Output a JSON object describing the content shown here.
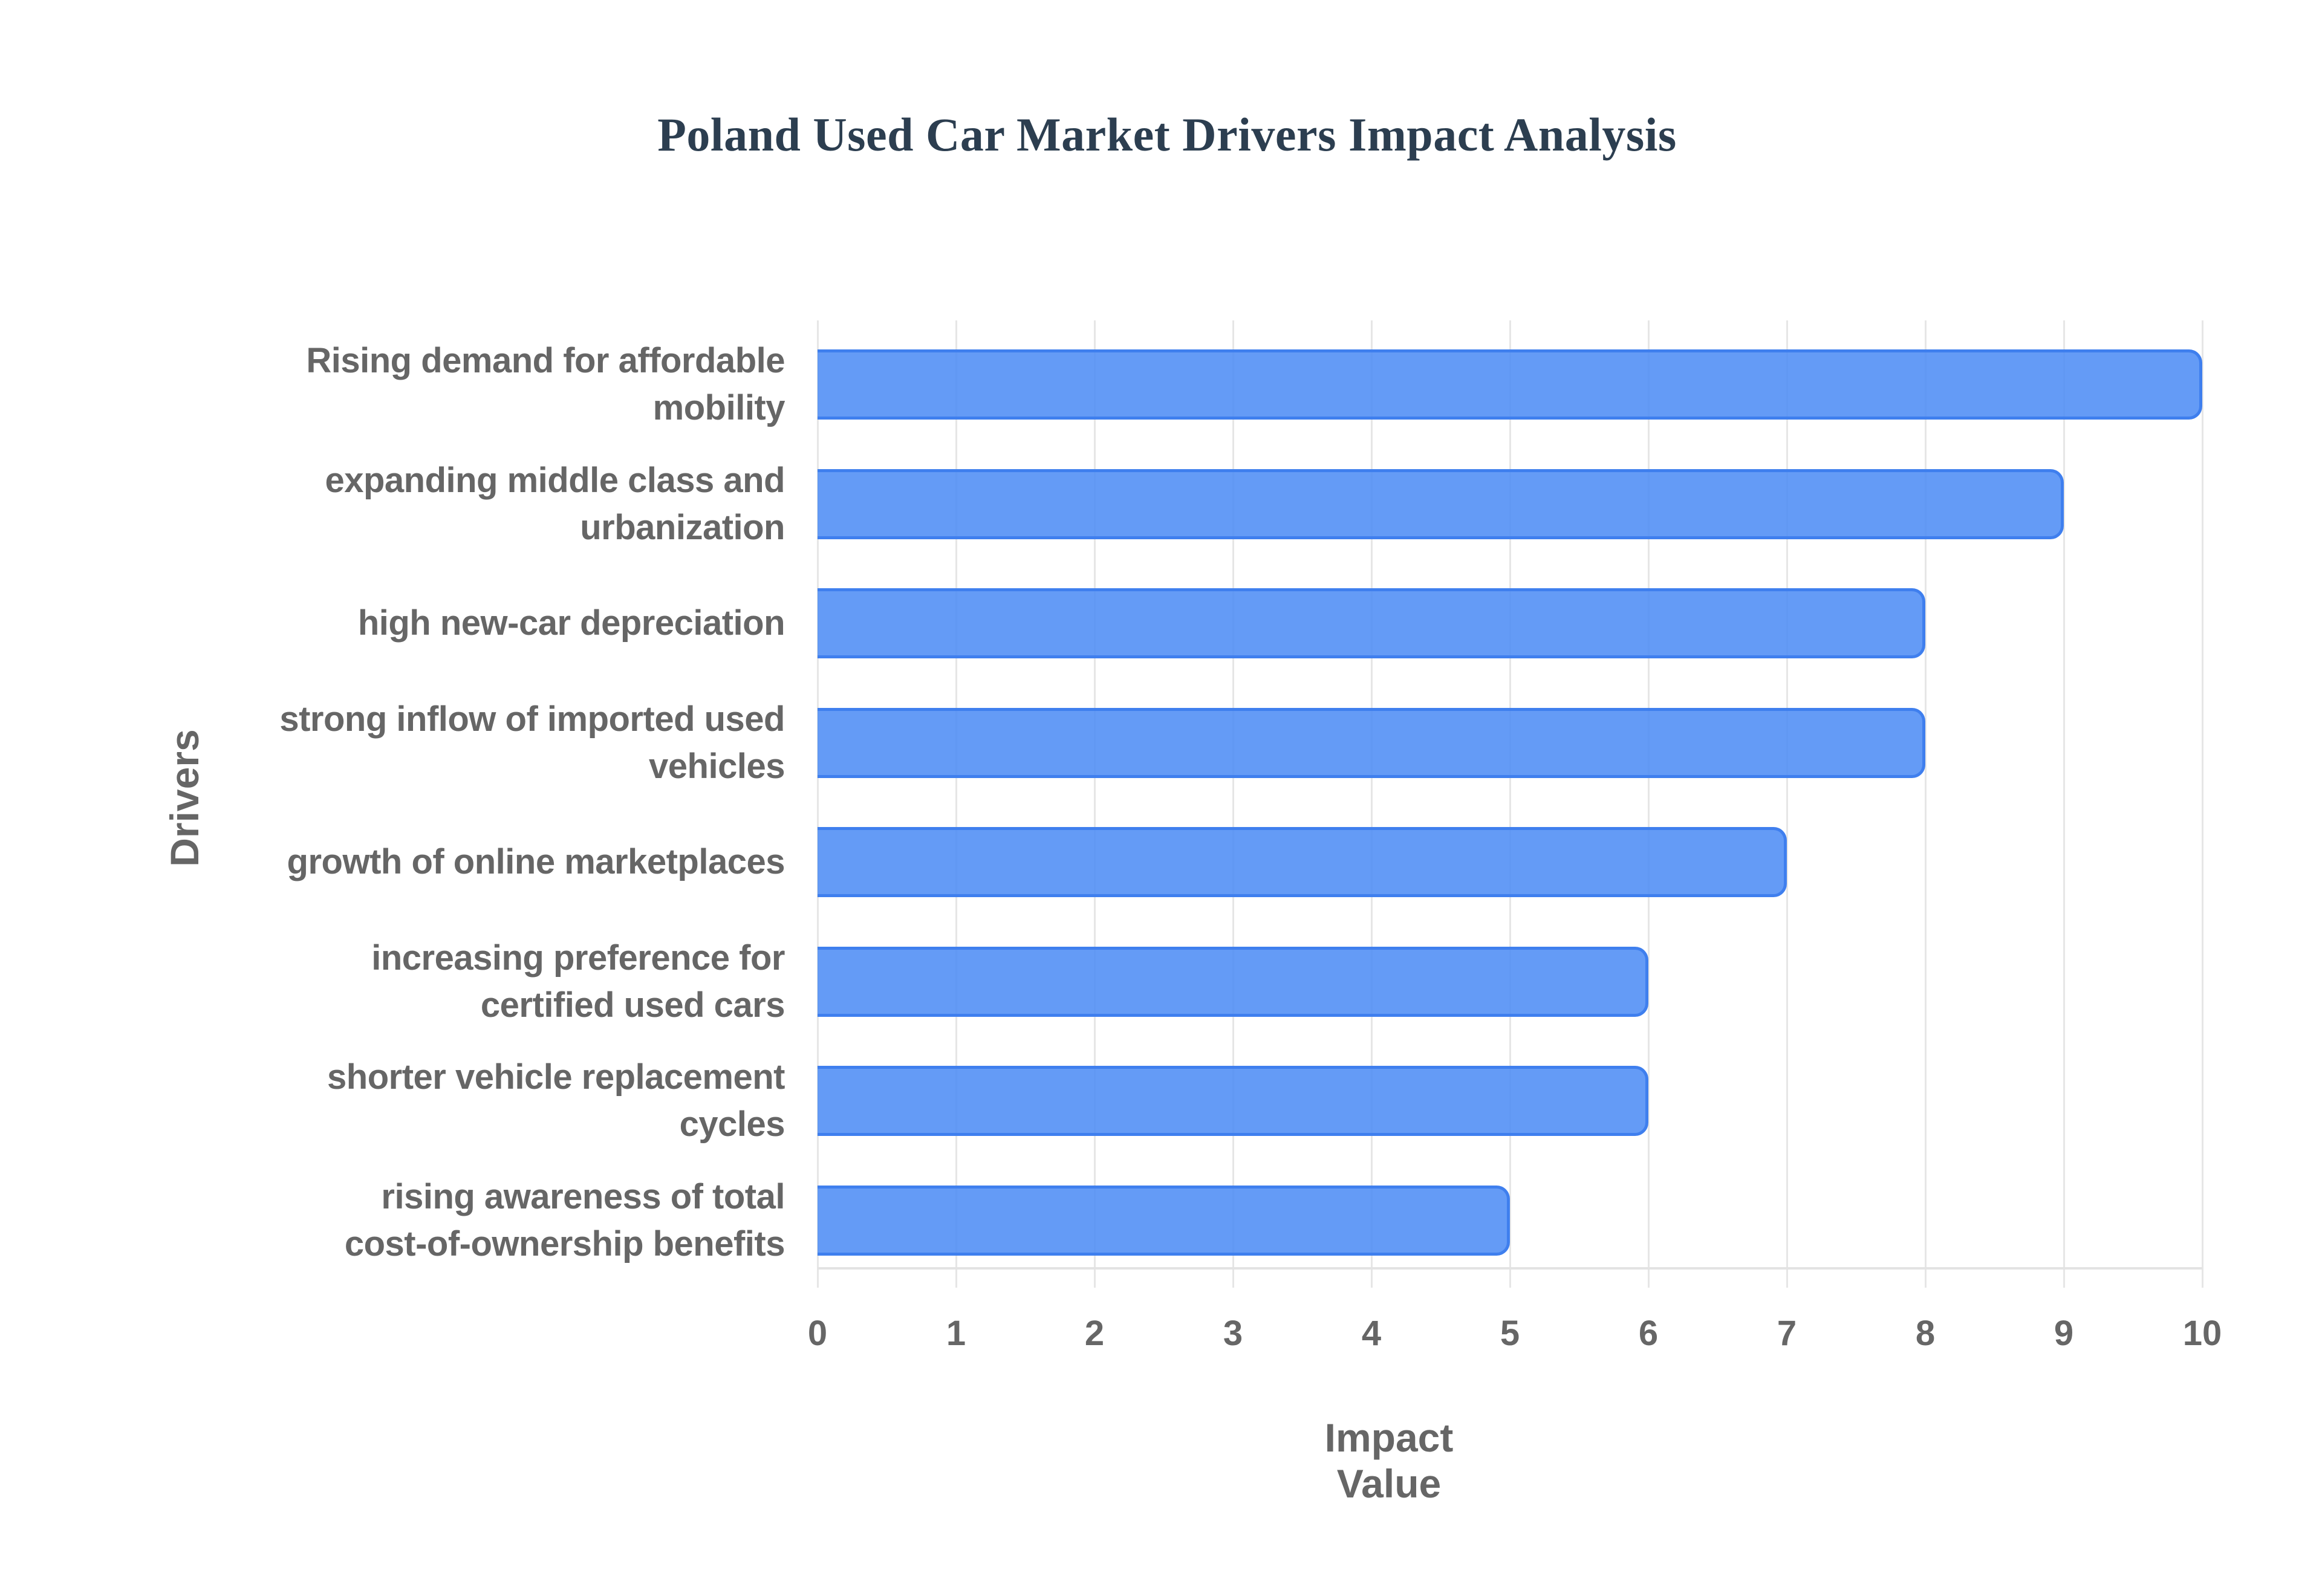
{
  "chart_data": {
    "type": "bar",
    "orientation": "horizontal",
    "title": "Poland Used Car Market Drivers Impact Analysis",
    "xlabel": "Impact Value",
    "ylabel": "Drivers",
    "categories": [
      "Rising demand for affordable mobility",
      "expanding middle class and urbanization",
      "high new-car depreciation",
      "strong inflow of imported used vehicles",
      "growth of online marketplaces",
      "increasing preference for certified used cars",
      "shorter vehicle replacement cycles",
      "rising awareness of total cost-of-ownership benefits"
    ],
    "values": [
      10,
      9,
      8,
      8,
      7,
      6,
      6,
      5
    ],
    "xlim": [
      0,
      10
    ],
    "xticks": [
      "0",
      "1",
      "2",
      "3",
      "4",
      "5",
      "6",
      "7",
      "8",
      "9",
      "10"
    ],
    "grid": "vertical gridlines on",
    "legend": "none",
    "colors": {
      "bar_fill": "#5f97f3",
      "bar_border": "#3f7fee",
      "title": "#2c3e50",
      "axis_text": "#666666",
      "grid": "#e6e6e6"
    }
  },
  "labels": [
    {
      "lines": [
        "Rising demand for affordable",
        "mobility"
      ]
    },
    {
      "lines": [
        "expanding middle class and",
        "urbanization"
      ]
    },
    {
      "lines": [
        "high new-car depreciation"
      ]
    },
    {
      "lines": [
        "strong inflow of imported used",
        "vehicles"
      ]
    },
    {
      "lines": [
        "growth of online marketplaces"
      ]
    },
    {
      "lines": [
        "increasing preference for",
        "certified used cars"
      ]
    },
    {
      "lines": [
        "shorter vehicle replacement",
        "cycles"
      ]
    },
    {
      "lines": [
        "rising awareness of total",
        "cost-of-ownership benefits"
      ]
    }
  ]
}
